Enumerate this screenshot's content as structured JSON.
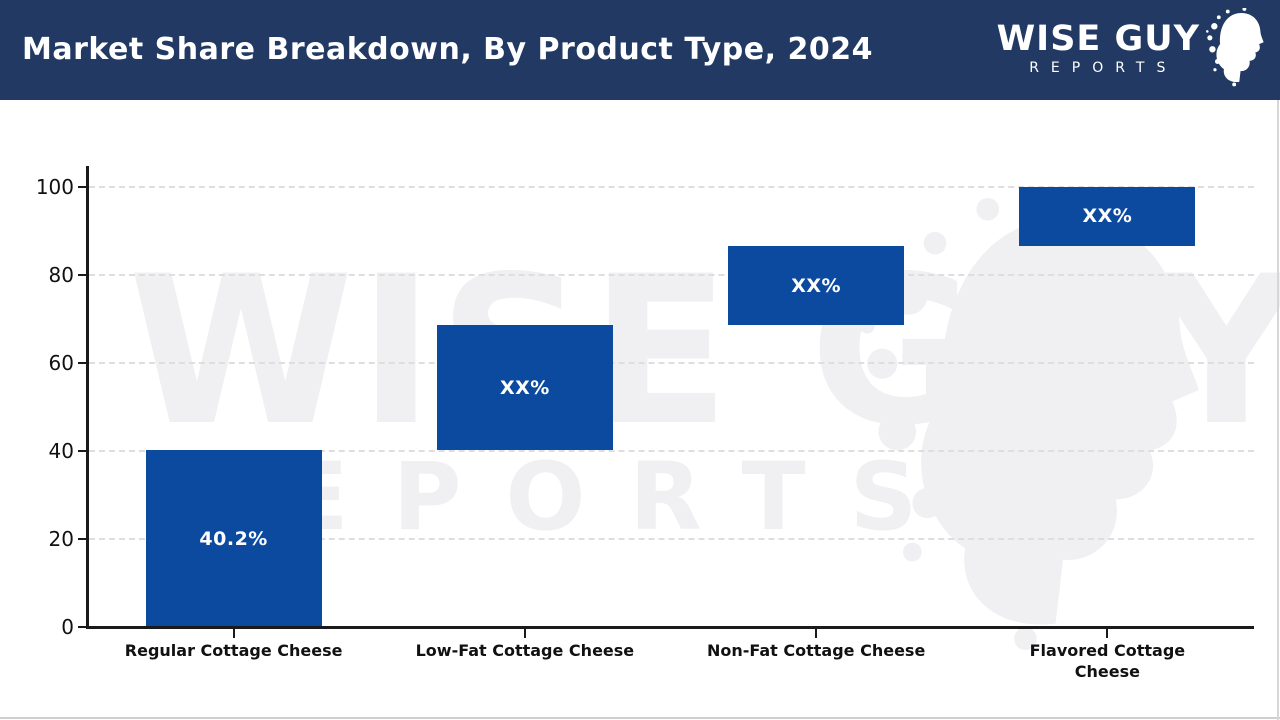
{
  "header": {
    "title": "Market Share Breakdown, By Product Type, 2024",
    "logo": {
      "line1": "WISE GUY",
      "line2": "REPORTS"
    }
  },
  "watermark": {
    "line1": "WISE GUY",
    "line2": "REPORTS"
  },
  "colors": {
    "header_bg": "#223A63",
    "bar": "#0C4AA0",
    "bar_label": "#FFFFFF",
    "grid": "#DEDEDE",
    "axis": "#1A1A1A",
    "watermark": "#F0F0F2"
  },
  "chart_data": {
    "type": "bar",
    "variant": "stacked-percentage-waterfall",
    "title": "Market Share Breakdown, By Product Type, 2024",
    "categories": [
      "Regular Cottage Cheese",
      "Low-Fat Cottage Cheese",
      "Non-Fat Cottage Cheese",
      "Flavored Cottage Cheese"
    ],
    "series": [
      {
        "category": "Regular Cottage Cheese",
        "label": "40.2%",
        "value": 40.2,
        "start": 0,
        "end": 40.2
      },
      {
        "category": "Low-Fat Cottage Cheese",
        "label": "XX%",
        "value": 28.4,
        "start": 40.2,
        "end": 68.6
      },
      {
        "category": "Non-Fat Cottage Cheese",
        "label": "XX%",
        "value": 18.0,
        "start": 68.6,
        "end": 86.6
      },
      {
        "category": "Flavored Cottage Cheese",
        "label": "XX%",
        "value": 13.4,
        "start": 86.6,
        "end": 100
      }
    ],
    "xlabel": "",
    "ylabel": "",
    "ylim": [
      0,
      100
    ],
    "yticks": [
      0,
      20,
      40,
      60,
      80,
      100
    ],
    "grid": "horizontal-dashed",
    "legend": "none"
  }
}
